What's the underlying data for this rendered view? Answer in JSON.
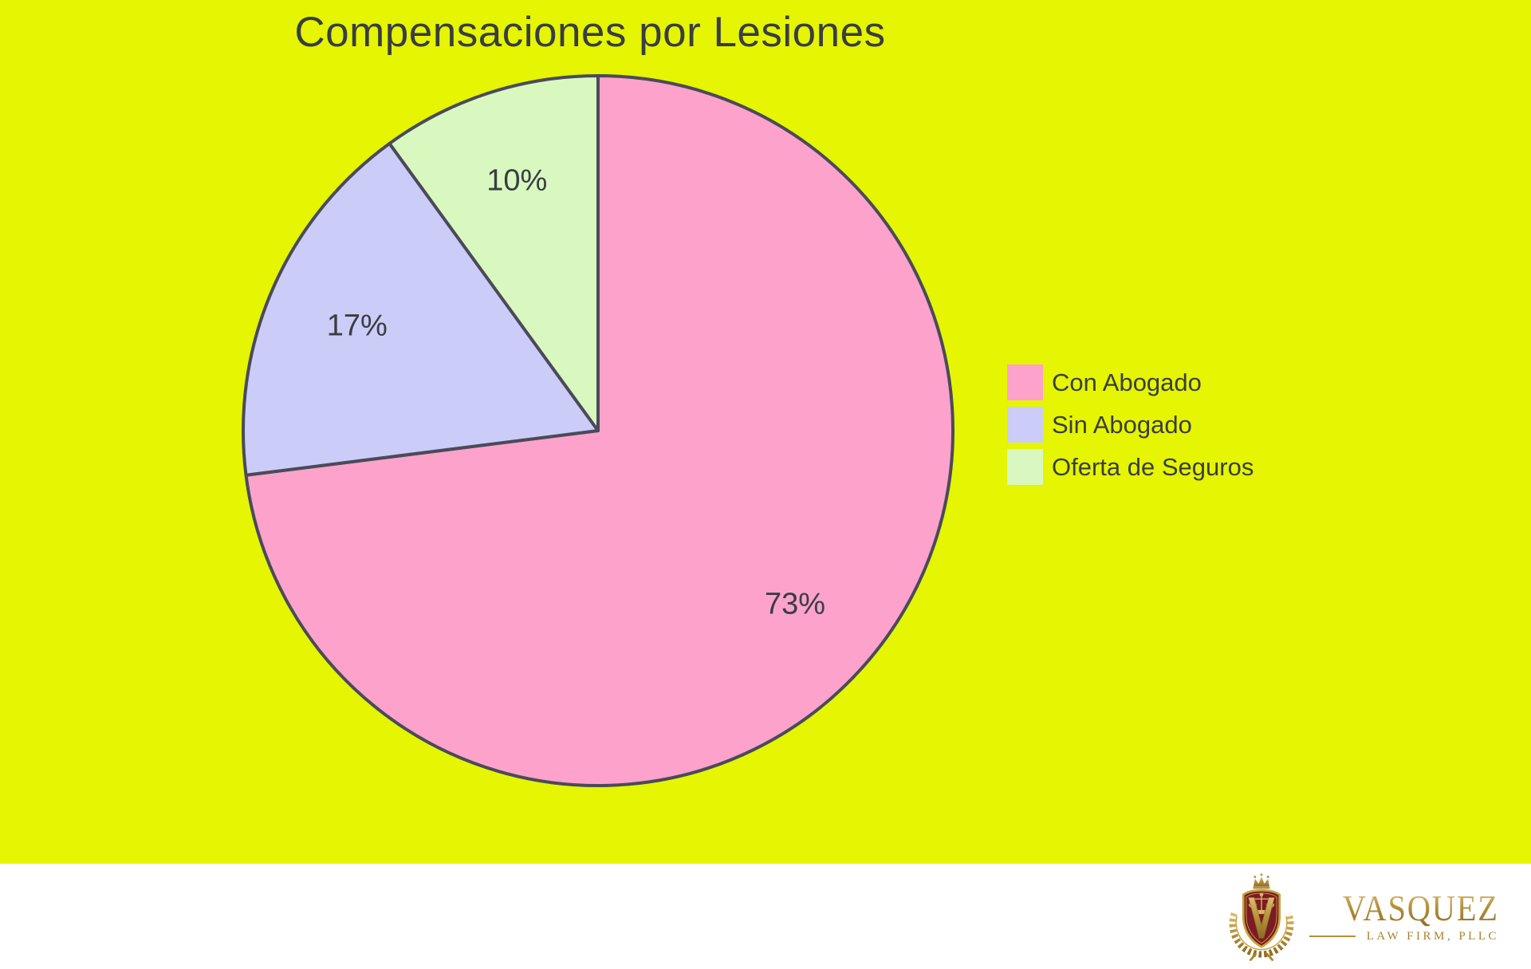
{
  "page": {
    "background_color": "#E5F502",
    "footer_band_color": "#FFFFFF",
    "text_color": "#3A3D42"
  },
  "chart_data": {
    "type": "pie",
    "title": "Compensaciones por Lesiones",
    "categories": [
      "Con Abogado",
      "Sin Abogado",
      "Oferta de Seguros"
    ],
    "values": [
      73,
      17,
      10
    ],
    "value_labels": [
      "73%",
      "17%",
      "10%"
    ],
    "colors": [
      "#FCA2CB",
      "#CBCCF7",
      "#D8F8C0"
    ],
    "slice_border_color": "#4A4A5A",
    "label_color": "#3A3D42",
    "legend_position": "right",
    "start_angle_deg": 0,
    "direction": "clockwise"
  },
  "logo": {
    "brand": "VASQUEZ",
    "subtitle": "LAW FIRM, PLLC"
  }
}
